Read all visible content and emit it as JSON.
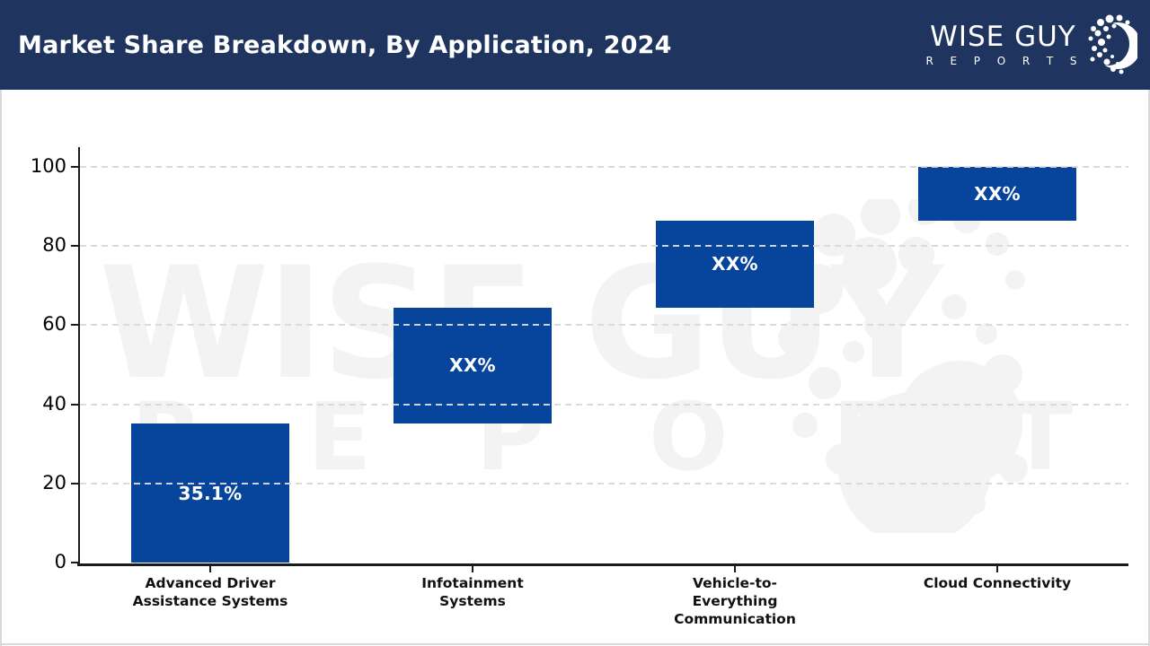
{
  "header": {
    "title": "Market Share Breakdown, By Application, 2024",
    "logo": {
      "line1": "WISE GUY",
      "line2": "R E P O R T S"
    }
  },
  "watermark": {
    "line1": "WISE GUY",
    "line2": "R E P O R T S"
  },
  "colors": {
    "header_bg": "#1f3560",
    "bar": "#07459c",
    "grid": "#d9d9d9",
    "axis": "#1a1a1a",
    "watermark": "#f3f3f3",
    "bar_label": "#ffffff"
  },
  "chart_data": {
    "type": "bar",
    "subtype": "floating-waterfall",
    "title": "Market Share Breakdown, By Application, 2024",
    "categories": [
      "Advanced Driver Assistance Systems",
      "Infotainment Systems",
      "Vehicle-to-Everything Communication",
      "Cloud Connectivity"
    ],
    "category_lines": [
      [
        "Advanced Driver",
        "Assistance Systems"
      ],
      [
        "Infotainment",
        "Systems"
      ],
      [
        "Vehicle-to-",
        "Everything",
        "Communication"
      ],
      [
        "Cloud Connectivity"
      ]
    ],
    "segments": [
      {
        "category": "Advanced Driver Assistance Systems",
        "start": 0,
        "end": 35.1,
        "label": "35.1%"
      },
      {
        "category": "Infotainment Systems",
        "start": 35.1,
        "end": 64.5,
        "label": "XX%"
      },
      {
        "category": "Vehicle-to-Everything Communication",
        "start": 64.5,
        "end": 86.5,
        "label": "XX%"
      },
      {
        "category": "Cloud Connectivity",
        "start": 86.5,
        "end": 100,
        "label": "XX%"
      }
    ],
    "yticks": [
      0,
      20,
      40,
      60,
      80,
      100
    ],
    "ylim": [
      0,
      104
    ],
    "xlabel": "",
    "ylabel": "",
    "grid": "dashed-horizontal",
    "legend": "none",
    "bar_color": "#07459c"
  }
}
